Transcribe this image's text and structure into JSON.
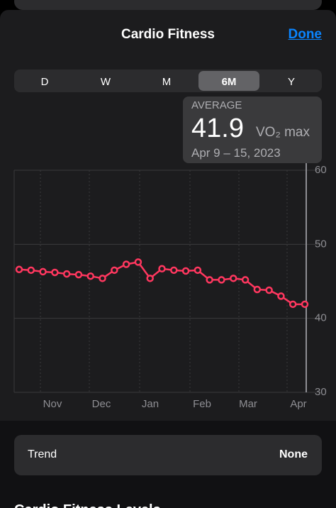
{
  "header": {
    "title": "Cardio Fitness",
    "done": "Done"
  },
  "segments": {
    "options": [
      "D",
      "W",
      "M",
      "6M",
      "Y"
    ],
    "selected_index": 3
  },
  "tooltip": {
    "label": "AVERAGE",
    "value": 41.9,
    "unit": "VO₂ max",
    "date": "Apr 9 – 15, 2023"
  },
  "chart_data": {
    "type": "line",
    "color": "#ff375f",
    "values": [
      46.6,
      46.5,
      46.3,
      46.2,
      46.0,
      45.9,
      45.7,
      45.4,
      46.5,
      47.3,
      47.6,
      45.4,
      46.7,
      46.5,
      46.4,
      46.5,
      45.2,
      45.2,
      45.4,
      45.2,
      43.9,
      43.8,
      43.0,
      41.9,
      41.9
    ],
    "x_labels": [
      "Nov",
      "Dec",
      "Jan",
      "Feb",
      "Mar",
      "Apr"
    ],
    "ylim": [
      30,
      60
    ],
    "yticks": [
      30,
      40,
      50,
      60
    ],
    "grid": true
  },
  "trend": {
    "label": "Trend",
    "value": "None"
  },
  "section_title": "Cardio Fitness Levels"
}
